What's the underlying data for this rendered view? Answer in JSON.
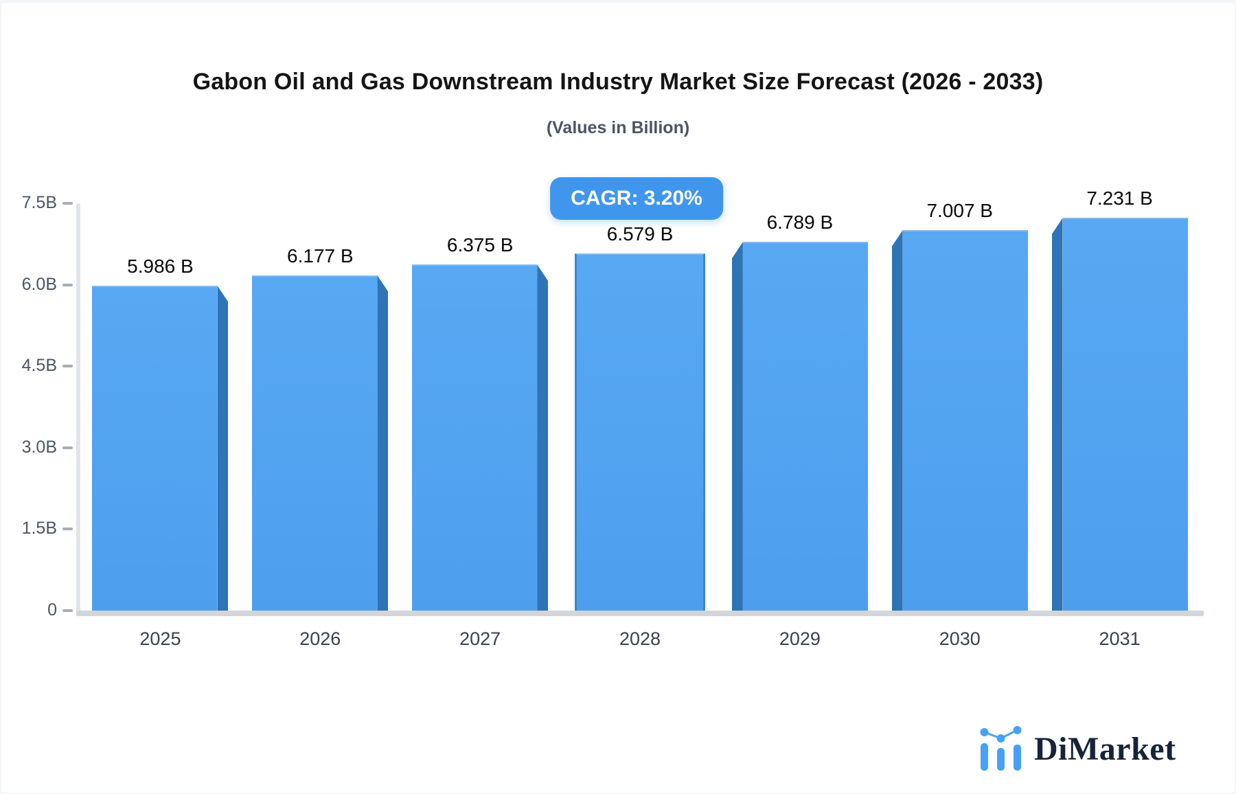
{
  "header": {
    "title": "Gabon Oil and Gas Downstream Industry Market Size Forecast (2026 - 2033)",
    "subtitle": "(Values in Billion)"
  },
  "badge": {
    "label": "CAGR: 3.20%"
  },
  "chart_data": {
    "type": "bar",
    "title": "Gabon Oil and Gas Downstream Industry Market Size Forecast (2026 - 2033)",
    "subtitle": "(Values in Billion)",
    "categories": [
      "2025",
      "2026",
      "2027",
      "2028",
      "2029",
      "2030",
      "2031"
    ],
    "values": [
      5.986,
      6.177,
      6.375,
      6.579,
      6.789,
      7.007,
      7.231
    ],
    "value_labels": [
      "5.986 B",
      "6.177 B",
      "6.375 B",
      "6.579 B",
      "6.789 B",
      "7.007 B",
      "7.231 B"
    ],
    "xlabel": "",
    "ylabel": "",
    "ylim": [
      0,
      7.5
    ],
    "y_ticks": [
      "7.5B",
      "6.0B",
      "4.5B",
      "3.0B",
      "1.5B",
      "0"
    ],
    "y_tick_values": [
      7.5,
      6.0,
      4.5,
      3.0,
      1.5,
      0
    ],
    "grid": false,
    "legend": false,
    "bar_style": "3d-perspective-toward-center"
  },
  "branding": {
    "name": "DiMarket",
    "icon": "dimarket-bar-chart-icon"
  },
  "colors": {
    "accent": "#3f96ec",
    "bar": "#4fa1ef",
    "bar_side": "#2d75b7",
    "brand": "#172338",
    "icon_blue": "#47a1f7",
    "axis_line": "#e1e4e8",
    "baseline": "#d2d5d9"
  }
}
